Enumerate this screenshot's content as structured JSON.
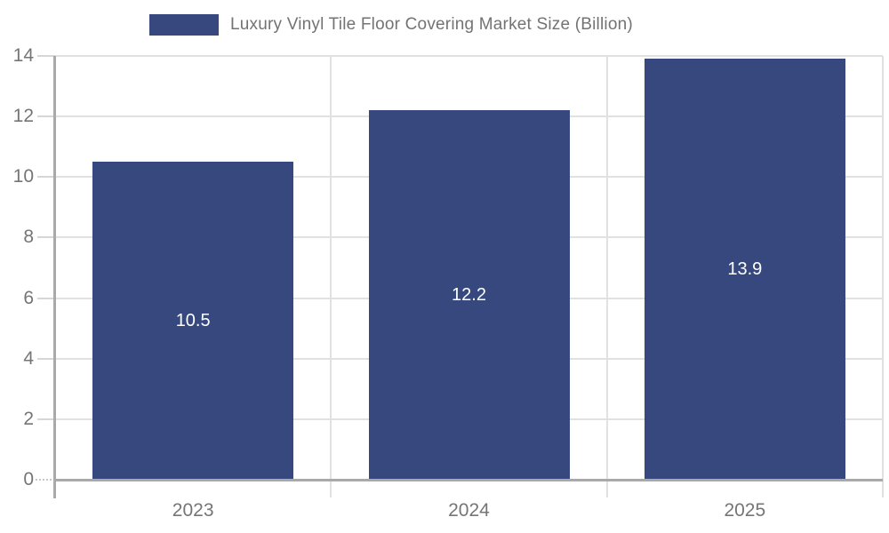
{
  "chart_data": {
    "type": "bar",
    "title": "Luxury Vinyl Tile Floor Covering Market Size (Billion)",
    "legend_label": "Luxury Vinyl Tile Floor Covering Market Size (Billion)",
    "legend_position": "top-center",
    "categories": [
      "2023",
      "2024",
      "2025"
    ],
    "values": [
      10.5,
      12.2,
      13.9
    ],
    "value_labels": [
      "10.5",
      "12.2",
      "13.9"
    ],
    "xlabel": "",
    "ylabel": "",
    "ylim": [
      0,
      14
    ],
    "yticks": [
      0,
      2,
      4,
      6,
      8,
      10,
      12,
      14
    ],
    "grid": "on",
    "colors": {
      "bar": "#36487E",
      "bar_label": "#FFFFFF",
      "axis_line": "#A9A9A9",
      "gridline": "#E1E1E1",
      "tick_mark": "#D6D6D6",
      "tick_label": "#757575",
      "legend_text": "#737373",
      "background": "#FFFFFF"
    }
  }
}
